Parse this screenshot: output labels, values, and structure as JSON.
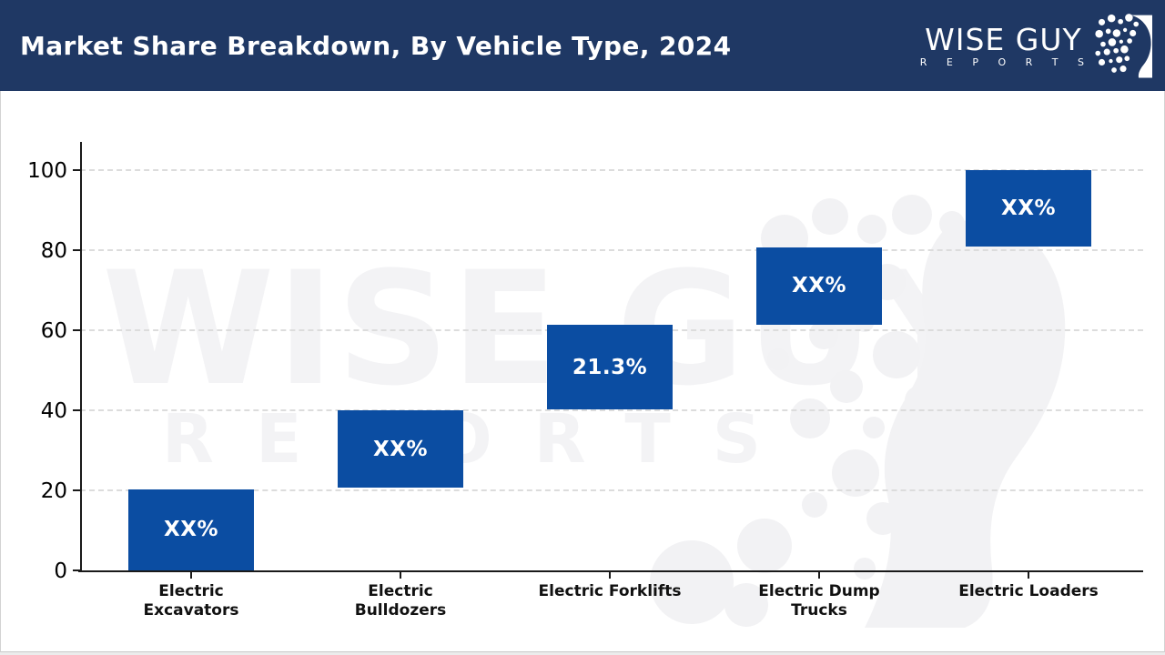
{
  "header": {
    "title": "Market Share Breakdown, By Vehicle Type, 2024",
    "bg_color": "#1f3864",
    "logo": {
      "line1": "WISE GUY",
      "line2": "R E P O R T S"
    }
  },
  "watermark": {
    "line1": "WISE GUY",
    "line2": "REPORTS"
  },
  "chart_data": {
    "type": "bar",
    "subtype": "waterfall",
    "title": "Market Share Breakdown, By Vehicle Type, 2024",
    "xlabel": "",
    "ylabel": "",
    "ylim": [
      0,
      107
    ],
    "yticks": [
      0,
      20,
      40,
      60,
      80,
      100
    ],
    "grid": "horizontal-dashed",
    "legend": "none",
    "bar_color": "#0b4da2",
    "bar_label_color": "#ffffff",
    "categories": [
      "Electric\nExcavators",
      "Electric\nBulldozers",
      "Electric Forklifts",
      "Electric Dump\nTrucks",
      "Electric Loaders"
    ],
    "segments": [
      {
        "category": "Electric Excavators",
        "start": 0,
        "end": 20.3,
        "label": "XX%"
      },
      {
        "category": "Electric Bulldozers",
        "start": 20.6,
        "end": 40.0,
        "label": "XX%"
      },
      {
        "category": "Electric Forklifts",
        "start": 40.2,
        "end": 61.3,
        "label": "21.3%"
      },
      {
        "category": "Electric Dump Trucks",
        "start": 61.4,
        "end": 80.7,
        "label": "XX%"
      },
      {
        "category": "Electric Loaders",
        "start": 80.9,
        "end": 100.1,
        "label": "XX%"
      }
    ]
  }
}
